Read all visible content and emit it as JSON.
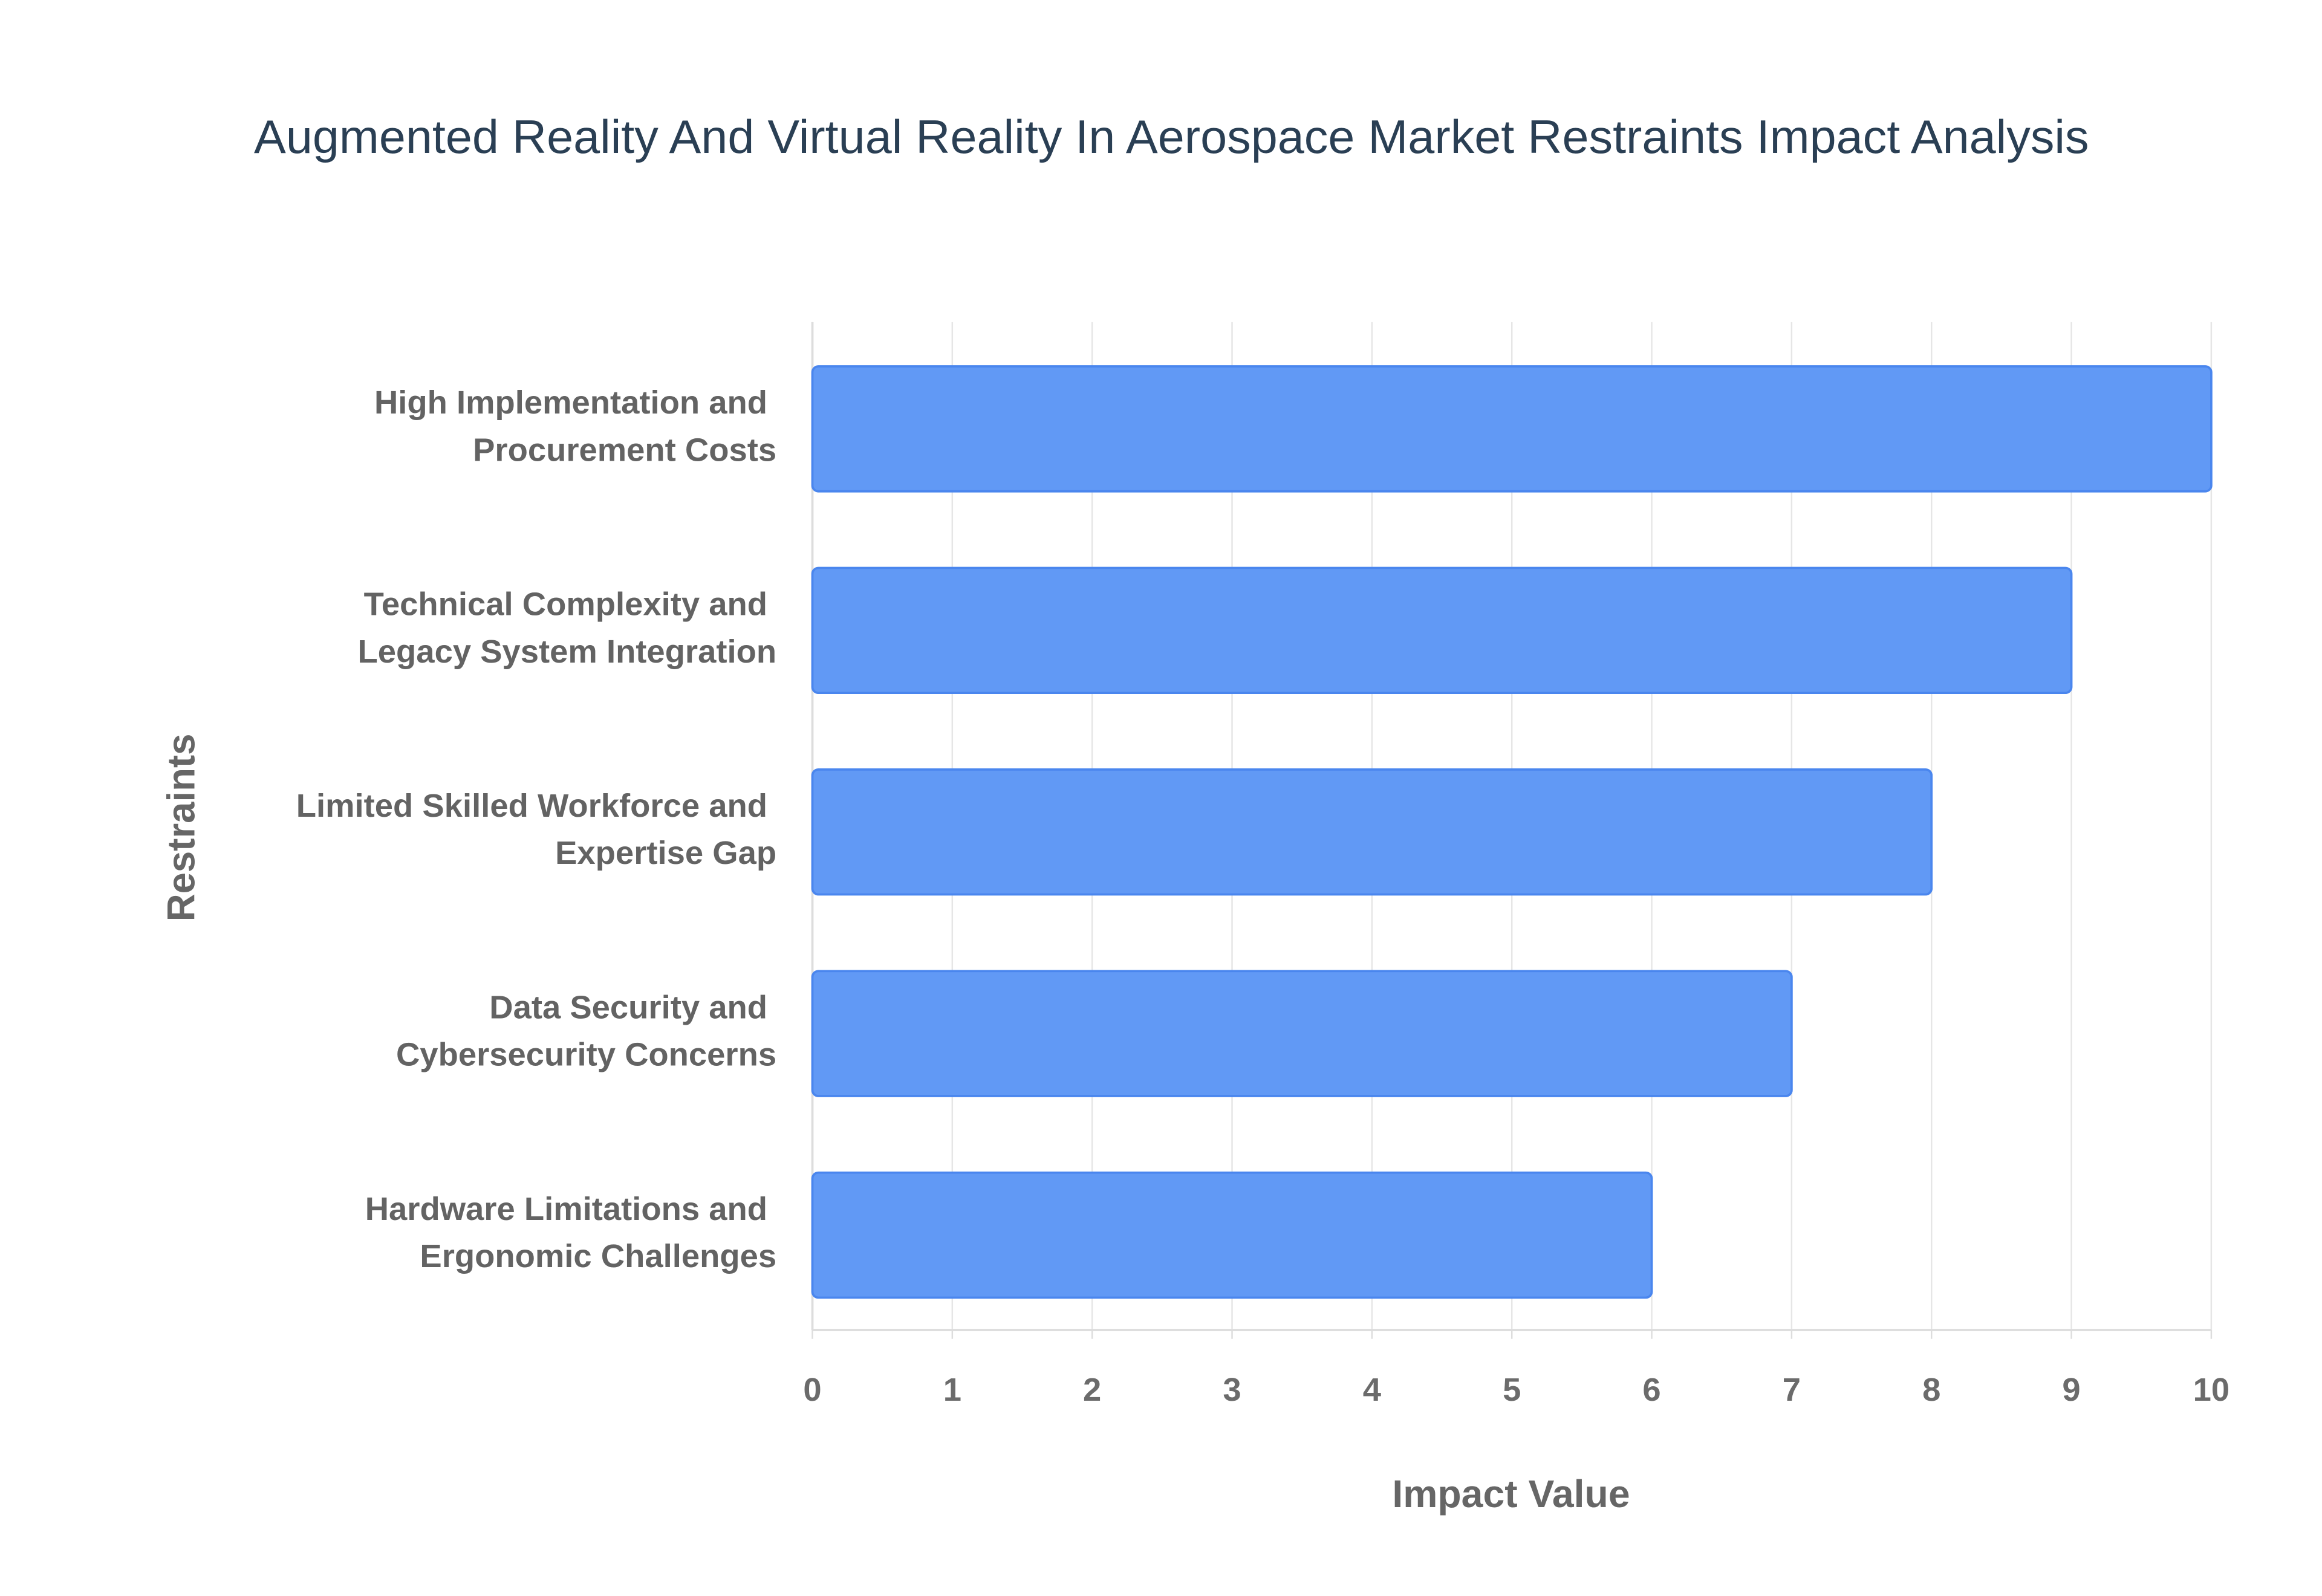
{
  "chart_data": {
    "type": "bar",
    "orientation": "horizontal",
    "title": "Augmented Reality And Virtual Reality In Aerospace Market Restraints Impact Analysis",
    "x_label": "Impact Value",
    "y_label": "Restraints",
    "categories": [
      "High Implementation and Procurement Costs",
      "Technical Complexity and Legacy System Integration",
      "Limited Skilled Workforce and Expertise Gap",
      "Data Security and Cybersecurity Concerns",
      "Hardware Limitations and Ergonomic Challenges"
    ],
    "values": [
      10,
      9,
      8,
      7,
      6
    ],
    "color": "#6199f5",
    "xlim": [
      0,
      10
    ],
    "xticks": [
      0,
      1,
      2,
      3,
      4,
      5,
      6,
      7,
      8,
      9,
      10
    ],
    "grid": true
  }
}
